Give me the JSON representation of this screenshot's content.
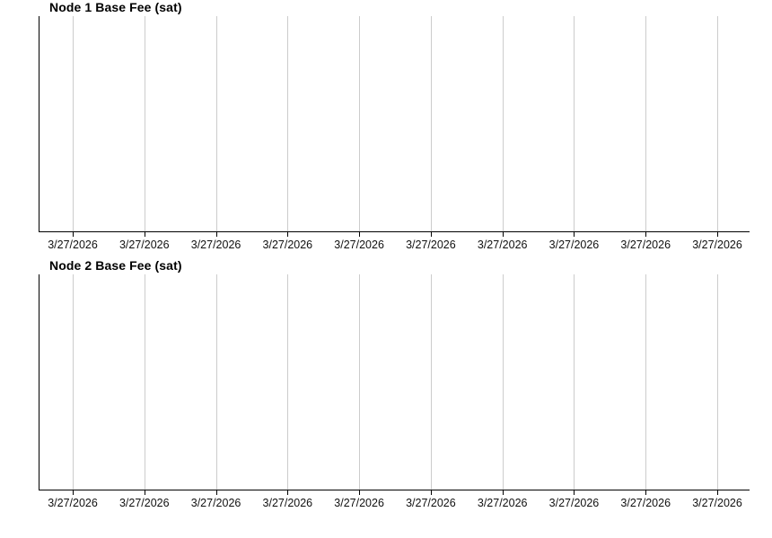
{
  "page": {
    "background": "#ffffff"
  },
  "colors": {
    "title": "#000000",
    "axis": "#000000",
    "gridline": "#cccccc",
    "tick_label": "#111111"
  },
  "charts": [
    {
      "title": "Node 1 Base Fee (sat)",
      "x_labels": [
        "3/27/2026",
        "3/27/2026",
        "3/27/2026",
        "3/27/2026",
        "3/27/2026",
        "3/27/2026",
        "3/27/2026",
        "3/27/2026",
        "3/27/2026",
        "3/27/2026"
      ]
    },
    {
      "title": "Node 2 Base Fee (sat)",
      "x_labels": [
        "3/27/2026",
        "3/27/2026",
        "3/27/2026",
        "3/27/2026",
        "3/27/2026",
        "3/27/2026",
        "3/27/2026",
        "3/27/2026",
        "3/27/2026",
        "3/27/2026"
      ]
    }
  ],
  "chart_data": [
    {
      "type": "line",
      "title": "Node 1 Base Fee (sat)",
      "xlabel": "",
      "ylabel": "",
      "x_tick_labels": [
        "3/27/2026",
        "3/27/2026",
        "3/27/2026",
        "3/27/2026",
        "3/27/2026",
        "3/27/2026",
        "3/27/2026",
        "3/27/2026",
        "3/27/2026",
        "3/27/2026"
      ],
      "y_tick_labels": [],
      "series": [],
      "grid": "vertical-only",
      "legend": "none",
      "note": "plot area is empty - no data series rendered"
    },
    {
      "type": "line",
      "title": "Node 2 Base Fee (sat)",
      "xlabel": "",
      "ylabel": "",
      "x_tick_labels": [
        "3/27/2026",
        "3/27/2026",
        "3/27/2026",
        "3/27/2026",
        "3/27/2026",
        "3/27/2026",
        "3/27/2026",
        "3/27/2026",
        "3/27/2026",
        "3/27/2026"
      ],
      "y_tick_labels": [],
      "series": [],
      "grid": "vertical-only",
      "legend": "none",
      "note": "plot area is empty - no data series rendered"
    }
  ]
}
